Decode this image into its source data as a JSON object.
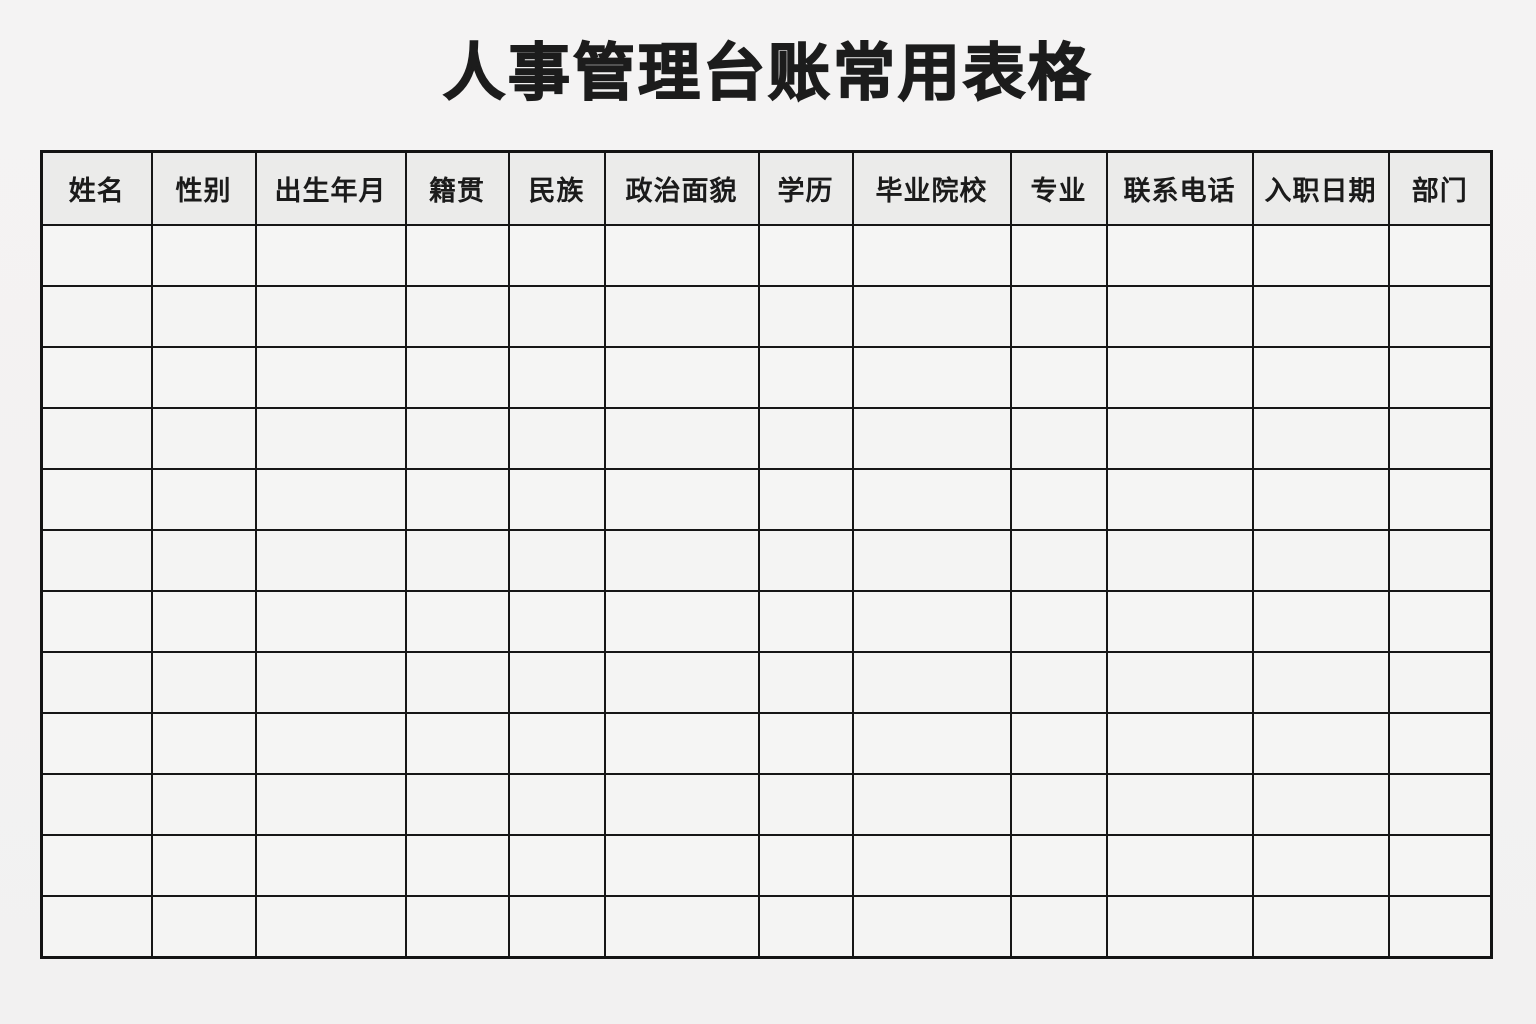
{
  "title": "人事管理台账常用表格",
  "table": {
    "columns": [
      {
        "id": "name",
        "label": "姓名"
      },
      {
        "id": "gender",
        "label": "性别"
      },
      {
        "id": "birth-date",
        "label": "出生年月"
      },
      {
        "id": "native-place",
        "label": "籍贯"
      },
      {
        "id": "ethnicity",
        "label": "民族"
      },
      {
        "id": "political-status",
        "label": "政治面貌"
      },
      {
        "id": "education",
        "label": "学历"
      },
      {
        "id": "graduate-school",
        "label": "毕业院校"
      },
      {
        "id": "major",
        "label": "专业"
      },
      {
        "id": "contact-phone",
        "label": "联系电话"
      },
      {
        "id": "entry-date",
        "label": "入职日期"
      },
      {
        "id": "department",
        "label": "部门"
      }
    ],
    "empty_row_count": 12,
    "cell_values": []
  },
  "colors": {
    "page_background": "#f3f2f2",
    "header_cell_background": "#ebebea",
    "body_cell_background": "#f5f5f4",
    "border": "#161616",
    "text": "#1c1c1c"
  }
}
